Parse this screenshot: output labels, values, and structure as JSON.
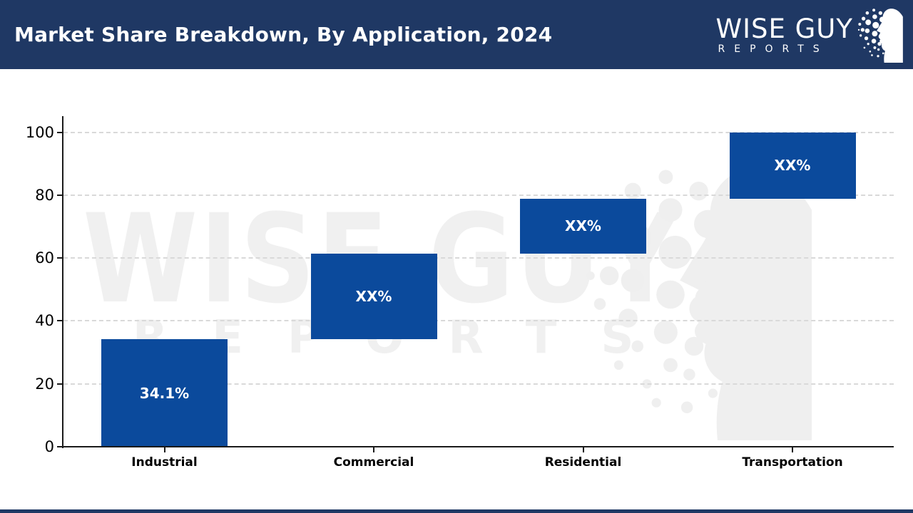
{
  "header": {
    "title": "Market Share Breakdown, By Application, 2024",
    "bg_color": "#1F3864",
    "logo_line1": "WISE GUY",
    "logo_line2": "REPORTS"
  },
  "watermark": {
    "line1": "WISE GUY",
    "line2": "REPORTS"
  },
  "colors": {
    "bar": "#0B4A9C",
    "header_bg": "#1F3864",
    "grid": "#D9D9D9",
    "watermark": "#EFEFEF"
  },
  "chart_data": {
    "type": "bar",
    "subtype": "waterfall",
    "title": "Market Share Breakdown, By Application, 2024",
    "categories": [
      "Industrial",
      "Commercial",
      "Residential",
      "Transportation"
    ],
    "segments": [
      {
        "category": "Industrial",
        "start": 0,
        "end": 34.1,
        "label": "34.1%"
      },
      {
        "category": "Commercial",
        "start": 34.1,
        "end": 61.4,
        "label": "XX%"
      },
      {
        "category": "Residential",
        "start": 61.4,
        "end": 79.0,
        "label": "XX%"
      },
      {
        "category": "Transportation",
        "start": 79.0,
        "end": 100,
        "label": "XX%"
      }
    ],
    "xlabel": "",
    "ylabel": "",
    "ylim": [
      0,
      100
    ],
    "yticks": [
      0,
      20,
      40,
      60,
      80,
      100
    ],
    "grid": "horizontal-dashed",
    "legend": "none",
    "bar_color": "#0B4A9C"
  }
}
